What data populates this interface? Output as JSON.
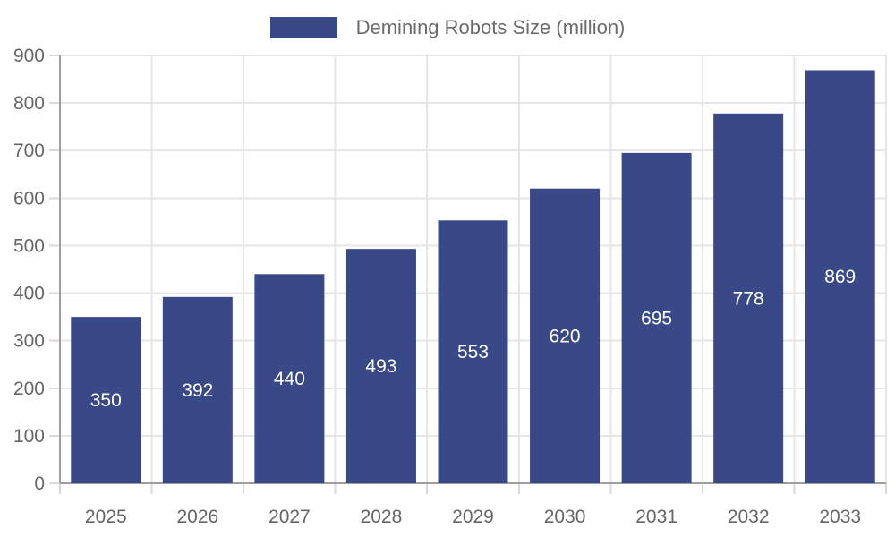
{
  "chart_data": {
    "type": "bar",
    "title": "Demining Robots Size (million)",
    "legend": {
      "position": "top",
      "entries": [
        "Demining Robots Size (million)"
      ]
    },
    "categories": [
      "2025",
      "2026",
      "2027",
      "2028",
      "2029",
      "2030",
      "2031",
      "2032",
      "2033"
    ],
    "values": [
      350,
      392,
      440,
      493,
      553,
      620,
      695,
      778,
      869
    ],
    "value_labels": [
      "350",
      "392",
      "440",
      "493",
      "553",
      "620",
      "695",
      "778",
      "869"
    ],
    "xlabel": "",
    "ylabel": "",
    "ylim": [
      0,
      900
    ],
    "ytick_interval": 100,
    "yticks": [
      "0",
      "100",
      "200",
      "300",
      "400",
      "500",
      "600",
      "700",
      "800",
      "900"
    ],
    "grid": true,
    "colors": {
      "bar": "#394987",
      "value_label": "#ffffff",
      "axis": "#9e9e9e",
      "grid": "#e6e6e6",
      "tick": "#d9d9d9",
      "tick_text": "#666666",
      "legend_text": "#6b6b6b",
      "background": "#ffffff"
    }
  }
}
